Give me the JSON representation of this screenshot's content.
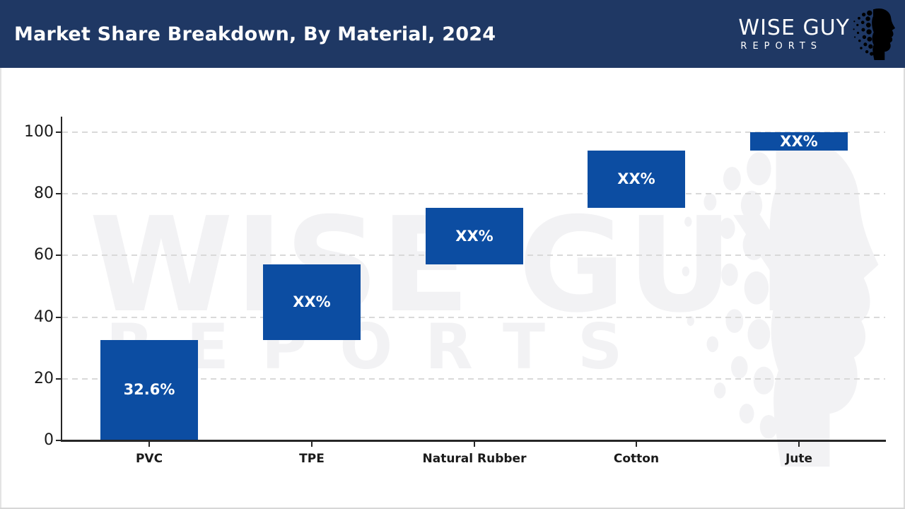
{
  "header": {
    "title": "Market Share Breakdown, By Material, 2024",
    "logo": {
      "wordmark": "WISE GUY",
      "tagline": "REPORTS"
    }
  },
  "watermark": {
    "wordmark": "WISE GUY",
    "tagline": "REPORTS"
  },
  "chart_data": {
    "type": "bar",
    "variant": "waterfall",
    "title": "Market Share Breakdown, By Material, 2024",
    "categories": [
      "PVC",
      "TPE",
      "Natural Rubber",
      "Cotton",
      "Jute"
    ],
    "segments": [
      {
        "category": "PVC",
        "start": 0,
        "end": 32.6,
        "label": "32.6%"
      },
      {
        "category": "TPE",
        "start": 32.6,
        "end": 57.0,
        "label": "XX%"
      },
      {
        "category": "Natural Rubber",
        "start": 57.0,
        "end": 75.5,
        "label": "XX%"
      },
      {
        "category": "Cotton",
        "start": 75.5,
        "end": 94.0,
        "label": "XX%"
      },
      {
        "category": "Jute",
        "start": 94.0,
        "end": 100.0,
        "label": "XX%"
      }
    ],
    "xlabel": "",
    "ylabel": "",
    "ylim": [
      0,
      100
    ],
    "yticks": [
      0,
      20,
      40,
      60,
      80,
      100
    ],
    "grid": {
      "horizontal": true,
      "style": "dashed"
    },
    "legend": null
  },
  "colors": {
    "header_bg": "#1f3864",
    "header_text": "#ffffff",
    "bar": "#0c4da2",
    "bar_label": "#ffffff",
    "axis": "#262626",
    "tick_label": "#1a1a1a",
    "gridline": "#d9d9d9",
    "watermark": "#f2f2f4"
  }
}
